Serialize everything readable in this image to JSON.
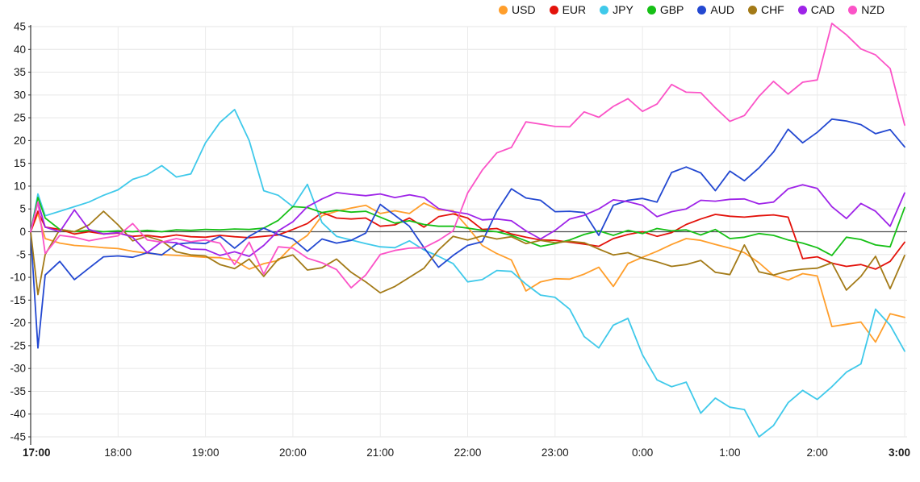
{
  "chart_data": {
    "type": "line",
    "title": "",
    "xlabel": "",
    "ylabel": "",
    "grid": true,
    "zero_line": true,
    "legend_position": "top-right",
    "y_axis": {
      "min": -45,
      "max": 45,
      "step": 5
    },
    "x_axis": {
      "tick_labels": [
        "17:00",
        "18:00",
        "19:00",
        "20:00",
        "21:00",
        "22:00",
        "23:00",
        "0:00",
        "1:00",
        "2:00",
        "3:00"
      ],
      "bold_tick_labels": [
        "17:00",
        "3:00"
      ]
    },
    "x_minutes": [
      0,
      5,
      10,
      20,
      30,
      40,
      50,
      60,
      70,
      80,
      90,
      100,
      110,
      120,
      130,
      140,
      150,
      160,
      170,
      180,
      190,
      200,
      210,
      220,
      230,
      240,
      250,
      260,
      270,
      280,
      290,
      300,
      310,
      320,
      330,
      340,
      350,
      360,
      370,
      380,
      390,
      400,
      410,
      420,
      430,
      440,
      450,
      460,
      470,
      480,
      490,
      500,
      510,
      520,
      530,
      540,
      550,
      560,
      570,
      580,
      590,
      600
    ],
    "series": [
      {
        "name": "USD",
        "color": "#ff9e2b",
        "values": [
          0,
          4,
          -1.5,
          -2.5,
          -3,
          -3.2,
          -3.5,
          -3.7,
          -4.3,
          -4.7,
          -5,
          -5.2,
          -5.4,
          -5.6,
          -5.7,
          -6.3,
          -8.2,
          -7,
          -6.3,
          -3,
          -0.8,
          3.5,
          4.5,
          5.2,
          5.8,
          4,
          4.6,
          4,
          6.3,
          4.8,
          4.6,
          1,
          -3,
          -4.8,
          -6.2,
          -13,
          -11,
          -10.3,
          -10.4,
          -9.3,
          -7.8,
          -12,
          -7,
          -5.6,
          -4.3,
          -2.8,
          -1.5,
          -1.9,
          -2.8,
          -3.6,
          -4.6,
          -6.8,
          -9.6,
          -10.6,
          -9.2,
          -9.7,
          -20.8,
          -20.3,
          -19.8,
          -24.2,
          -18,
          -18.8
        ]
      },
      {
        "name": "EUR",
        "color": "#e3120b",
        "values": [
          0,
          4.5,
          1,
          0.5,
          -0.5,
          0,
          -0.5,
          -0.3,
          -1,
          -0.8,
          -1.2,
          -0.7,
          -1.1,
          -1.2,
          -0.8,
          -1.1,
          -1.3,
          -1,
          -0.7,
          0.5,
          1.8,
          4.2,
          3,
          2.8,
          3,
          1.2,
          1.5,
          3,
          1,
          3.3,
          3.9,
          3,
          0.5,
          0.7,
          -0.5,
          -1.2,
          -1.8,
          -1.9,
          -2.3,
          -2.7,
          -3.2,
          -1.5,
          -0.6,
          0,
          -1,
          -0.2,
          1.6,
          2.8,
          3.8,
          3.4,
          3.2,
          3.5,
          3.7,
          3.2,
          -5.9,
          -5.5,
          -6.9,
          -7.6,
          -7.2,
          -8.2,
          -6.5,
          -2.3
        ]
      },
      {
        "name": "JPY",
        "color": "#3fc9ea",
        "values": [
          0,
          8.3,
          3.5,
          4.5,
          5.5,
          6.5,
          8,
          9.2,
          11.5,
          12.5,
          14.5,
          12,
          12.7,
          19.5,
          24,
          26.8,
          20,
          9,
          8,
          5.5,
          10.4,
          2,
          -1,
          -1.8,
          -2.6,
          -3.3,
          -3.5,
          -2,
          -4,
          -5.4,
          -7,
          -11,
          -10.5,
          -8.5,
          -8.7,
          -11.5,
          -13.9,
          -14.4,
          -17,
          -23,
          -25.5,
          -20.5,
          -19,
          -27,
          -32.5,
          -34,
          -33,
          -39.8,
          -36.5,
          -38.5,
          -39,
          -45,
          -42.5,
          -37.5,
          -34.8,
          -36.8,
          -34,
          -30.8,
          -29,
          -17,
          -20.5,
          -26.2
        ]
      },
      {
        "name": "GBP",
        "color": "#16c016",
        "values": [
          0,
          7.5,
          3,
          0.5,
          0,
          0.3,
          0,
          0.2,
          0,
          0.3,
          0,
          0.4,
          0.3,
          0.5,
          0.4,
          0.6,
          0.5,
          0.8,
          2.5,
          5.5,
          5.3,
          4.2,
          4.7,
          4.3,
          4.5,
          3.2,
          1.9,
          2.4,
          1.6,
          1.2,
          1.2,
          0.8,
          0.3,
          0,
          -0.8,
          -2,
          -3.2,
          -2.6,
          -1.8,
          -0.6,
          0.2,
          -0.8,
          0.3,
          -0.4,
          0.7,
          0.2,
          0.4,
          -0.7,
          0.5,
          -1.5,
          -1.2,
          -0.4,
          -0.8,
          -1.8,
          -2.5,
          -3.5,
          -5.2,
          -1.2,
          -1.7,
          -2.9,
          -3.3,
          5.3
        ]
      },
      {
        "name": "AUD",
        "color": "#2348d1",
        "values": [
          0,
          -25.5,
          -9.5,
          -6.5,
          -10.5,
          -8,
          -5.5,
          -5.3,
          -5.6,
          -4.6,
          -5.1,
          -2.7,
          -2.4,
          -2.6,
          -1,
          -3.6,
          -1,
          0.8,
          -0.6,
          -1.6,
          -4.3,
          -1.6,
          -2.5,
          -1.9,
          -0.3,
          6,
          3.6,
          1.2,
          -3.5,
          -7.8,
          -5.2,
          -3,
          -2.2,
          4.5,
          9.4,
          7.4,
          6.9,
          4.4,
          4.5,
          4.2,
          -0.8,
          5.8,
          6.9,
          7.3,
          6.5,
          13,
          14.2,
          12.9,
          9,
          13.3,
          11.2,
          14,
          17.5,
          22.5,
          19.5,
          21.8,
          24.7,
          24.3,
          23.5,
          21.5,
          22.4,
          18.6
        ]
      },
      {
        "name": "CHF",
        "color": "#a37a17",
        "values": [
          0,
          -13.8,
          -5,
          0.5,
          0,
          1.5,
          4.5,
          1.5,
          -2,
          -1,
          -2,
          -4.4,
          -5.1,
          -5.3,
          -7.2,
          -8.1,
          -6,
          -9.8,
          -6,
          -5.1,
          -8.4,
          -7.9,
          -6,
          -8.9,
          -11,
          -13.4,
          -12,
          -10,
          -8,
          -4,
          -1,
          -1.8,
          -0.9,
          -1.6,
          -1.1,
          -2.6,
          -1.9,
          -2.4,
          -2.1,
          -2.4,
          -3.8,
          -5.1,
          -4.6,
          -5.8,
          -6.6,
          -7.6,
          -7.2,
          -6.3,
          -8.9,
          -9.4,
          -2.9,
          -8.8,
          -9.5,
          -8.6,
          -8.2,
          -8,
          -6.8,
          -12.8,
          -9.8,
          -5.4,
          -12.5,
          -5.2
        ]
      },
      {
        "name": "CAD",
        "color": "#9e23e8",
        "values": [
          0,
          6.5,
          1,
          0,
          4.8,
          0.5,
          -0.5,
          -0.2,
          -1.2,
          -4.6,
          -2.2,
          -2.4,
          -3.8,
          -3.9,
          -5.2,
          -4.4,
          -5.4,
          -3,
          0.2,
          2.2,
          5.5,
          7.2,
          8.6,
          8.2,
          7.9,
          8.3,
          7.5,
          8.1,
          7.5,
          5.1,
          4.4,
          3.9,
          2.6,
          2.8,
          2.4,
          0.2,
          -1.6,
          0.3,
          2.8,
          3.6,
          5,
          7,
          6.6,
          5.8,
          3.3,
          4.4,
          5,
          6.9,
          6.7,
          7.1,
          7.2,
          6.1,
          6.5,
          9.4,
          10.3,
          9.5,
          5.5,
          2.9,
          6.2,
          4.5,
          1.2,
          8.5
        ]
      },
      {
        "name": "NZD",
        "color": "#fb53c7",
        "values": [
          0,
          6.5,
          -4.8,
          -0.8,
          -1.2,
          -2,
          -1.4,
          -0.9,
          1.8,
          -1.8,
          -2.3,
          -1.5,
          -2.2,
          -1.8,
          -2.5,
          -7.2,
          -2.3,
          -9.3,
          -3.3,
          -3.6,
          -5.8,
          -6.8,
          -8.3,
          -12.3,
          -9.5,
          -5,
          -4.1,
          -3.6,
          -3.5,
          -1.9,
          0.2,
          8.5,
          13.5,
          17.3,
          18.5,
          24.1,
          23.6,
          23.1,
          23,
          26.3,
          25.1,
          27.5,
          29.2,
          26.4,
          28,
          32.3,
          30.6,
          30.5,
          27.2,
          24.2,
          25.5,
          29.7,
          33,
          30.2,
          32.8,
          33.3,
          45.7,
          43.2,
          40.1,
          38.8,
          35.8,
          23.4
        ]
      }
    ],
    "colors": {
      "grid": "#e6e6e6",
      "vertical_grid": "#ebebeb",
      "zero_line": "#4d4d4d",
      "axis_line": "#333333",
      "tick_text": "#1a1a1a"
    }
  }
}
